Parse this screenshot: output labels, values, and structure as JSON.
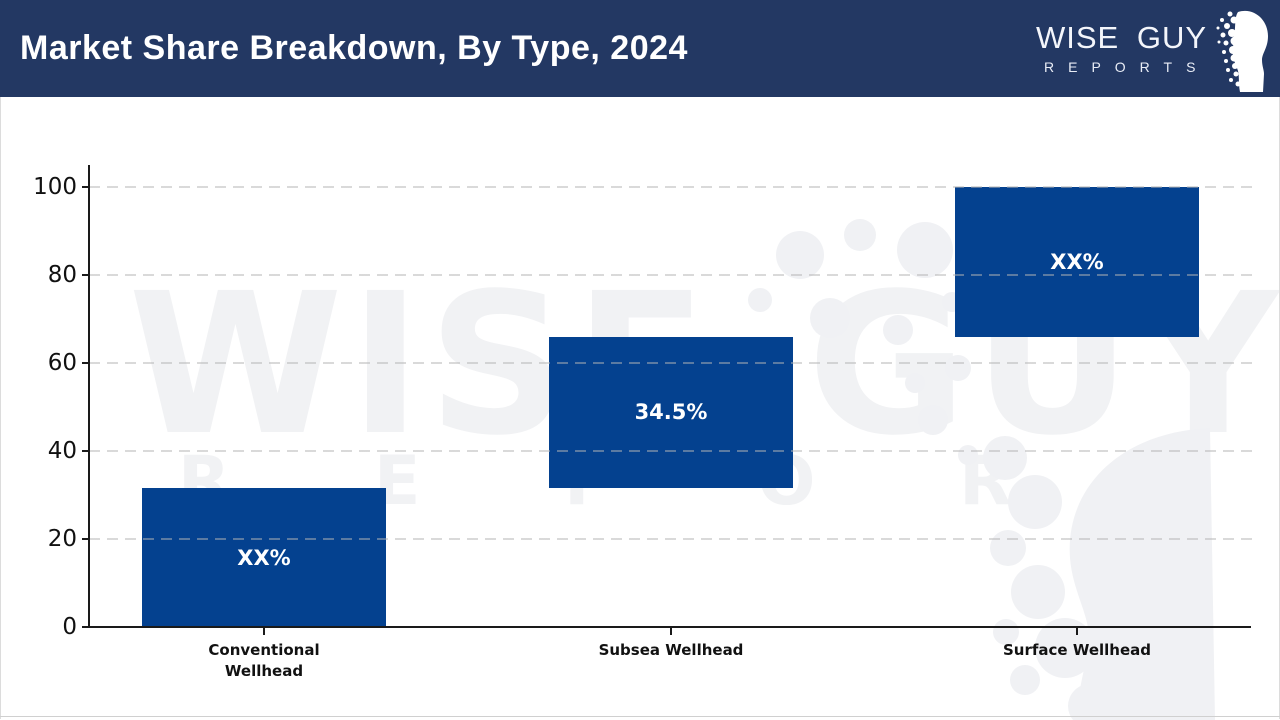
{
  "header": {
    "title": "Market Share Breakdown, By Type, 2024",
    "bg_color": "#233863",
    "logo": {
      "name": "WISE GUY",
      "sub": "REPORTS"
    }
  },
  "watermark": {
    "line1": "WISE GUY",
    "line2": "R E P O R T S"
  },
  "chart_data": {
    "type": "bar",
    "variant": "floating-segment-bars (stacked waterfall of market share)",
    "title": "Market Share Breakdown, By Type, 2024",
    "categories": [
      "Conventional Wellhead",
      "Subsea Wellhead",
      "Surface Wellhead"
    ],
    "series": [
      {
        "name": "Market share (%)",
        "segments": [
          {
            "category": "Conventional Wellhead",
            "start": 0,
            "end": 31.5,
            "label": "XX%"
          },
          {
            "category": "Subsea Wellhead",
            "start": 31.5,
            "end": 66,
            "label": "34.5%"
          },
          {
            "category": "Surface Wellhead",
            "start": 66,
            "end": 100,
            "label": "XX%"
          }
        ]
      }
    ],
    "ylim": [
      0,
      100
    ],
    "yticks": [
      0,
      20,
      40,
      60,
      80,
      100
    ],
    "grid": "horizontal-dashed",
    "legend": "none",
    "bar_color": "#04418f",
    "bar_label_color": "#ffffff",
    "axis_color": "#1a1a1a",
    "grid_color": "#d9d9d9"
  }
}
